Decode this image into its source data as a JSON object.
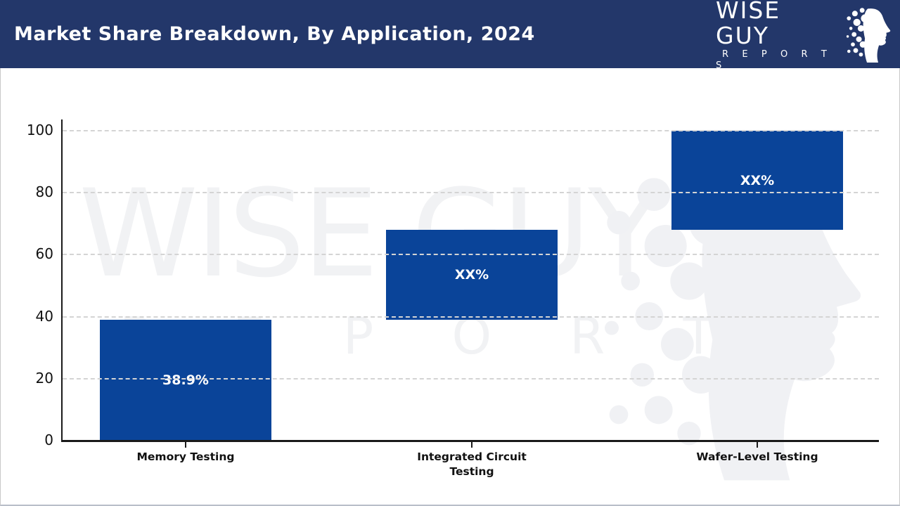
{
  "header": {
    "title": "Market Share Breakdown, By Application, 2024",
    "bg_color": "#23376a",
    "logo": {
      "line1": "WISE GUY",
      "line2": "REPORTS"
    }
  },
  "watermark": {
    "line1": "WISE GUY",
    "line2": "REPORTS"
  },
  "chart_data": {
    "type": "bar",
    "subtype": "waterfall",
    "title": "Market Share Breakdown, By Application, 2024",
    "categories": [
      "Memory Testing",
      "Integrated Circuit Testing",
      "Wafer-Level Testing"
    ],
    "segments": [
      {
        "category": "Memory Testing",
        "start": 0,
        "end": 38.9,
        "label": "38.9%"
      },
      {
        "category": "Integrated Circuit Testing",
        "start": 38.9,
        "end": 68,
        "label": "XX%"
      },
      {
        "category": "Wafer-Level Testing",
        "start": 68,
        "end": 100,
        "label": "XX%"
      }
    ],
    "ylim": [
      0,
      103.6
    ],
    "yticks": [
      0,
      20,
      40,
      60,
      80,
      100
    ],
    "grid": "horizontal-dashed-above-bars",
    "legend": "none",
    "bar_color": "#0a4499",
    "bar_label_color": "#ffffff",
    "grid_color": "#d4d4d4",
    "axis_color": "#1a1a1a"
  }
}
